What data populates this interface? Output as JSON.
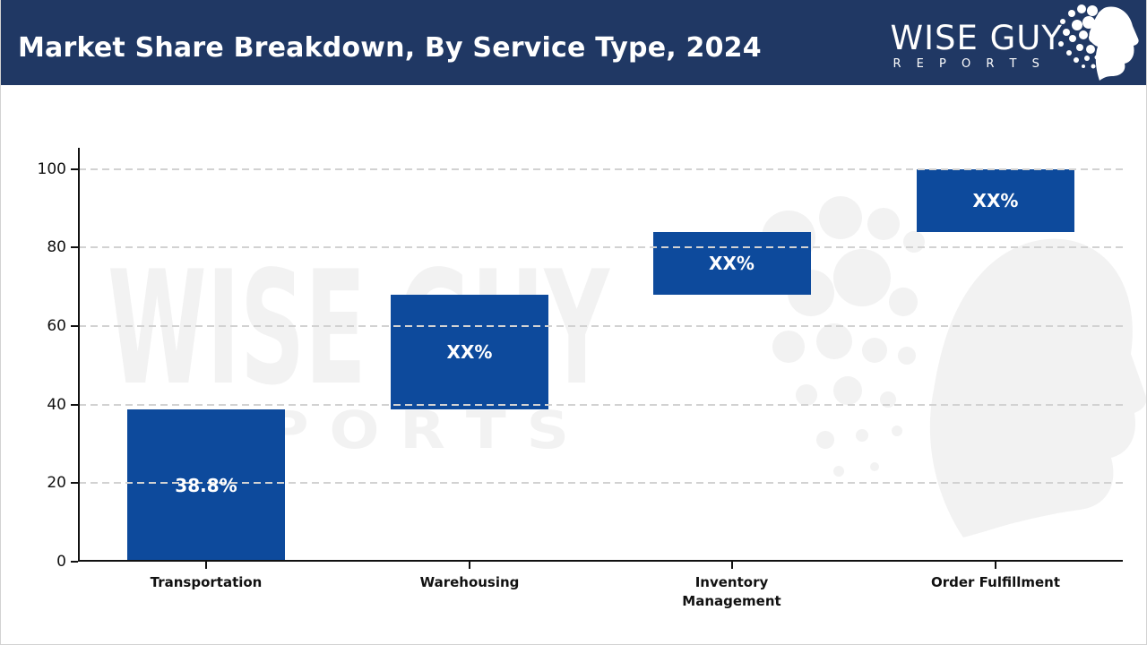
{
  "header": {
    "title": "Market Share Breakdown, By Service Type, 2024",
    "logo": {
      "line1": "WISE GUY",
      "line2": "R E P O R T S"
    }
  },
  "watermark": {
    "line1": "WISE GUY",
    "line2": "R E P O R T S"
  },
  "colors": {
    "header_bg": "#203864",
    "bar": "#0d4a9c",
    "bar_label": "#ffffff",
    "grid": "#d2d2d2",
    "axis": "#111111",
    "watermark": "#f2f2f2"
  },
  "chart_data": {
    "type": "bar",
    "subtype": "floating-waterfall",
    "title": "Market Share Breakdown, By Service Type, 2024",
    "xlabel": "",
    "ylabel": "",
    "ylim": [
      0,
      100
    ],
    "yticks": [
      0,
      20,
      40,
      60,
      80,
      100
    ],
    "grid": "horizontal-dashed-over-bars",
    "legend": "none",
    "categories": [
      "Transportation",
      "Warehousing",
      "Inventory\nManagement",
      "Order Fulfillment"
    ],
    "bars": [
      {
        "category": "Transportation",
        "start": 0,
        "end": 38.8,
        "label": "38.8%"
      },
      {
        "category": "Warehousing",
        "start": 38.8,
        "end": 68,
        "label": "XX%"
      },
      {
        "category": "Inventory Management",
        "start": 68,
        "end": 84,
        "label": "XX%"
      },
      {
        "category": "Order Fulfillment",
        "start": 84,
        "end": 100,
        "label": "XX%"
      }
    ]
  }
}
